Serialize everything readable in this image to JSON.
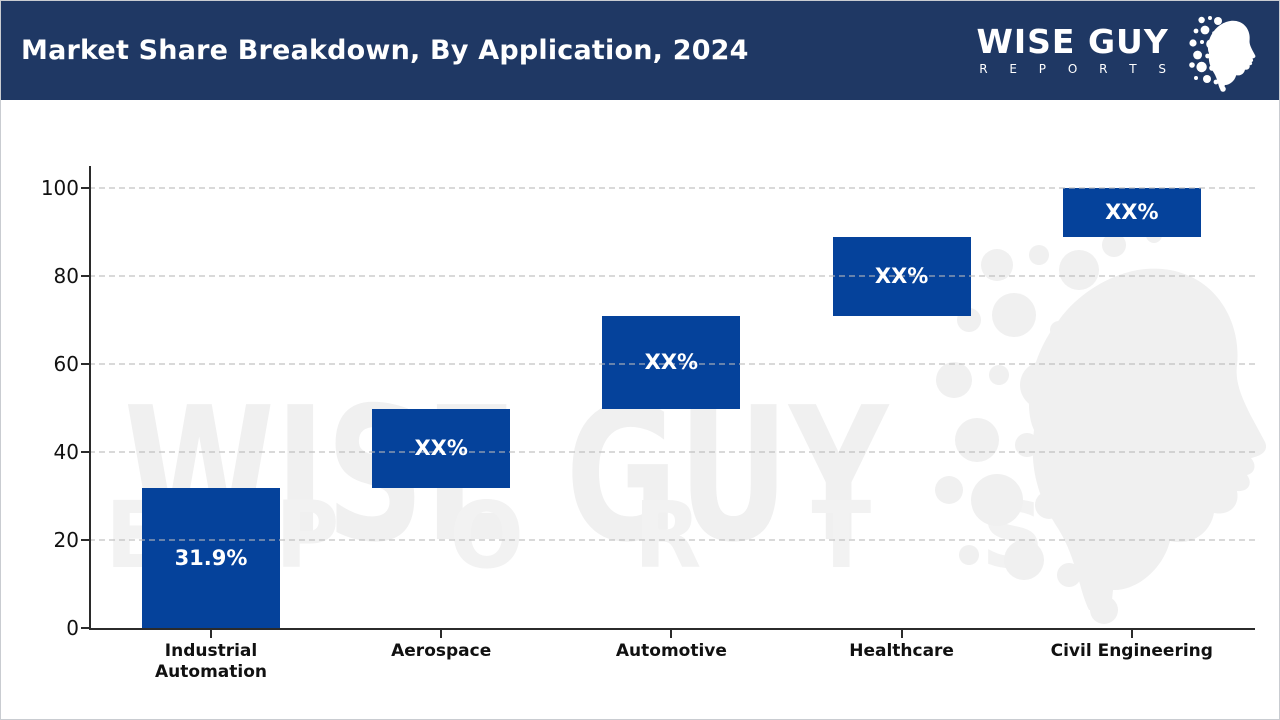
{
  "page": {
    "background": "#ffffff",
    "border_color": "#c9ccd1"
  },
  "header": {
    "background": "#1F3864",
    "title": "Market Share Breakdown, By Application, 2024",
    "logo": {
      "line1": "WISE GUY",
      "line2": "R E P O R T S",
      "head_icon": "dotted-face-profile"
    }
  },
  "watermark": {
    "line1": "WISE GUY",
    "line2": "R E P O R T S",
    "head_icon": "dotted-face-profile",
    "color": "#f0f0f0"
  },
  "chart_data": {
    "type": "bar",
    "subtype": "waterfall",
    "title": "Market Share Breakdown, By Application, 2024",
    "categories": [
      "Industrial Automation",
      "Aerospace",
      "Automotive",
      "Healthcare",
      "Civil Engineering"
    ],
    "segments": [
      {
        "category": "Industrial Automation",
        "start": 0,
        "end": 31.9,
        "label": "31.9%"
      },
      {
        "category": "Aerospace",
        "start": 31.9,
        "end": 49.8,
        "label": "XX%"
      },
      {
        "category": "Automotive",
        "start": 49.8,
        "end": 71.0,
        "label": "XX%"
      },
      {
        "category": "Healthcare",
        "start": 71.0,
        "end": 88.9,
        "label": "XX%"
      },
      {
        "category": "Civil Engineering",
        "start": 88.9,
        "end": 100,
        "label": "XX%"
      }
    ],
    "xlabel": "",
    "ylabel": "",
    "ylim": [
      0,
      100
    ],
    "yticks": [
      0,
      20,
      40,
      60,
      80,
      100
    ],
    "grid": "horizontal-dashed",
    "legend": "none",
    "bar_color": "#05429B",
    "bar_label_color": "#ffffff",
    "axis_color": "#2b2b2b"
  }
}
